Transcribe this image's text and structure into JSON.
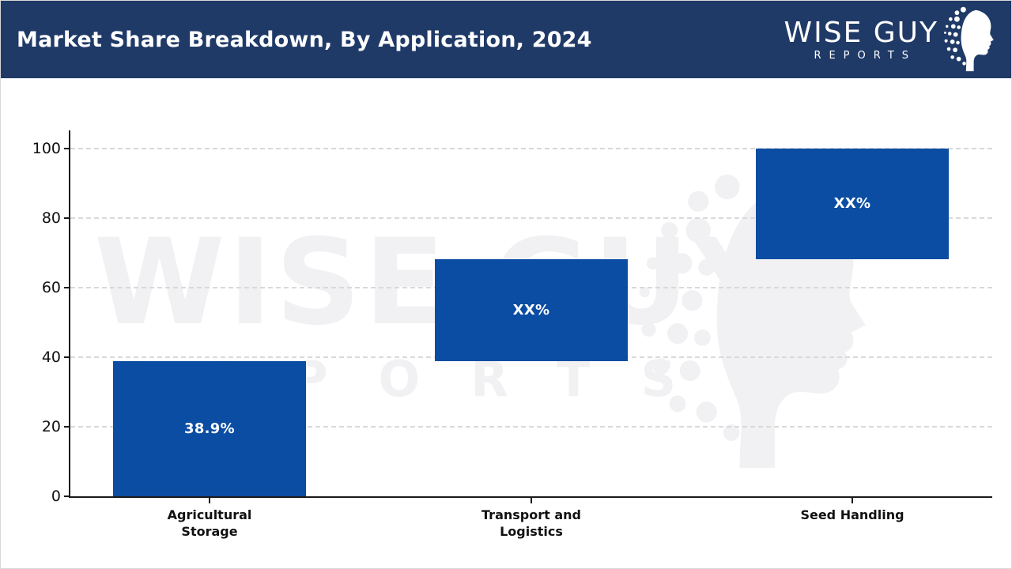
{
  "header": {
    "title": "Market Share Breakdown, By Application, 2024",
    "logo": {
      "wordmark": "WISE GUY",
      "subtext": "REPORTS"
    }
  },
  "watermark": {
    "wordmark": "WISE GUY",
    "subtext": "REPORTS"
  },
  "chart_data": {
    "type": "bar",
    "subtype": "waterfall",
    "title": "Market Share Breakdown, By Application, 2024",
    "categories": [
      [
        "Agricultural",
        "Storage"
      ],
      [
        "Transport and",
        "Logistics"
      ],
      [
        "Seed Handling"
      ]
    ],
    "series": [
      {
        "name": "Agricultural Storage",
        "start": 0,
        "end": 38.9,
        "label": "38.9%"
      },
      {
        "name": "Transport and Logistics",
        "start": 38.9,
        "end": 68.2,
        "label": "XX%"
      },
      {
        "name": "Seed Handling",
        "start": 68.2,
        "end": 100,
        "label": "XX%"
      }
    ],
    "ylim": [
      0,
      100
    ],
    "yticks": [
      0,
      20,
      40,
      60,
      80,
      100
    ],
    "grid": "horizontal-dashed",
    "legend": "none",
    "bar_color": "#0b4da2",
    "bar_label_color": "#ffffff",
    "axis_color": "#1a1a1a",
    "gridline_color": "#d9d9d9",
    "header_color": "#203a68"
  }
}
